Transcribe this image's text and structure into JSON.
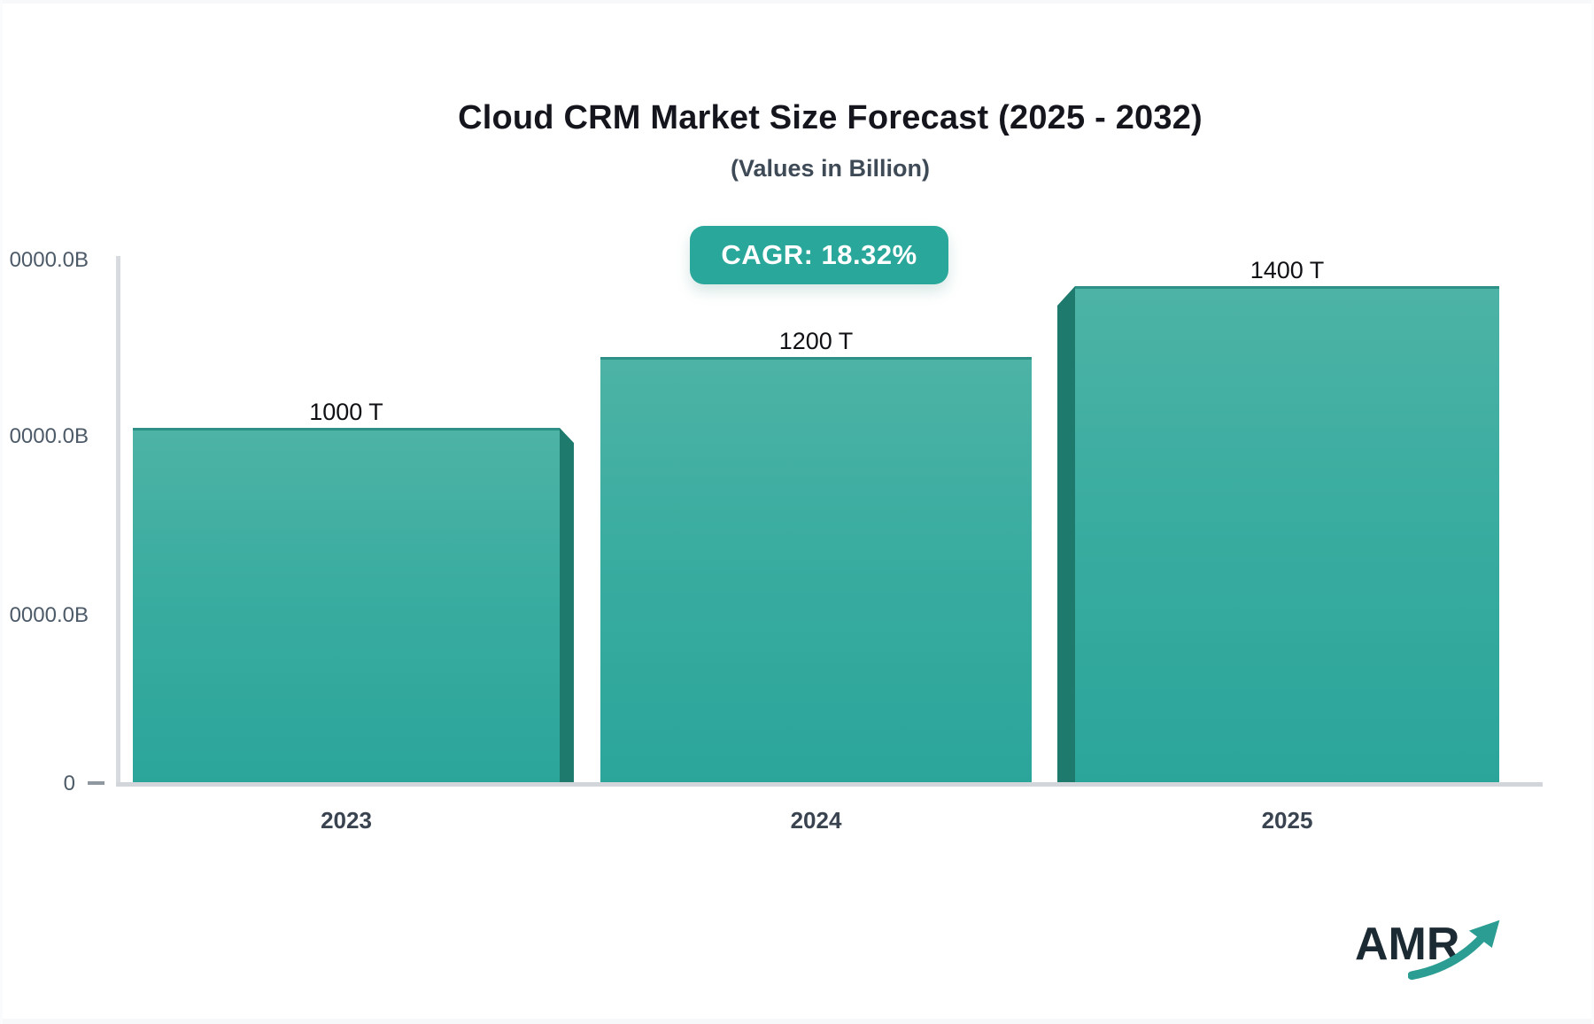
{
  "title": "Cloud CRM Market Size Forecast (2025 - 2032)",
  "subtitle": "(Values in Billion)",
  "badge": {
    "label": "CAGR: 18.32%"
  },
  "logo": {
    "text": "AMR"
  },
  "colors": {
    "accent_teal": "#2aa79b",
    "bar_top": "#4db3a6",
    "bar_bottom": "#2ba59a",
    "bar_side_shadow": "#1f7a6e",
    "axis_line": "#d2d6da",
    "title_text": "#15161d",
    "axis_text": "#4d5a68",
    "logo_text": "#1b2a33",
    "logo_arrow": "#2c9d92"
  },
  "chart_data": {
    "type": "bar",
    "title": "Cloud CRM Market Size Forecast (2025 - 2032)",
    "subtitle": "(Values in Billion)",
    "categories": [
      "2023",
      "2024",
      "2025"
    ],
    "values": [
      1000,
      1200,
      1400
    ],
    "value_labels": [
      "1000 T",
      "1200 T",
      "1400 T"
    ],
    "cagr_annotation": "CAGR: 18.32%",
    "xlabel": "",
    "ylabel": "",
    "ylim": [
      0,
      1500
    ],
    "y_tick_labels_displayed": [
      "0000.0B",
      "0000.0B",
      "0000.0B",
      "0"
    ],
    "y_tick_values_estimated": [
      1500,
      1000,
      500,
      0
    ],
    "grid": false,
    "legend": "none",
    "bar_style": "3d-beveled teal gradient"
  }
}
